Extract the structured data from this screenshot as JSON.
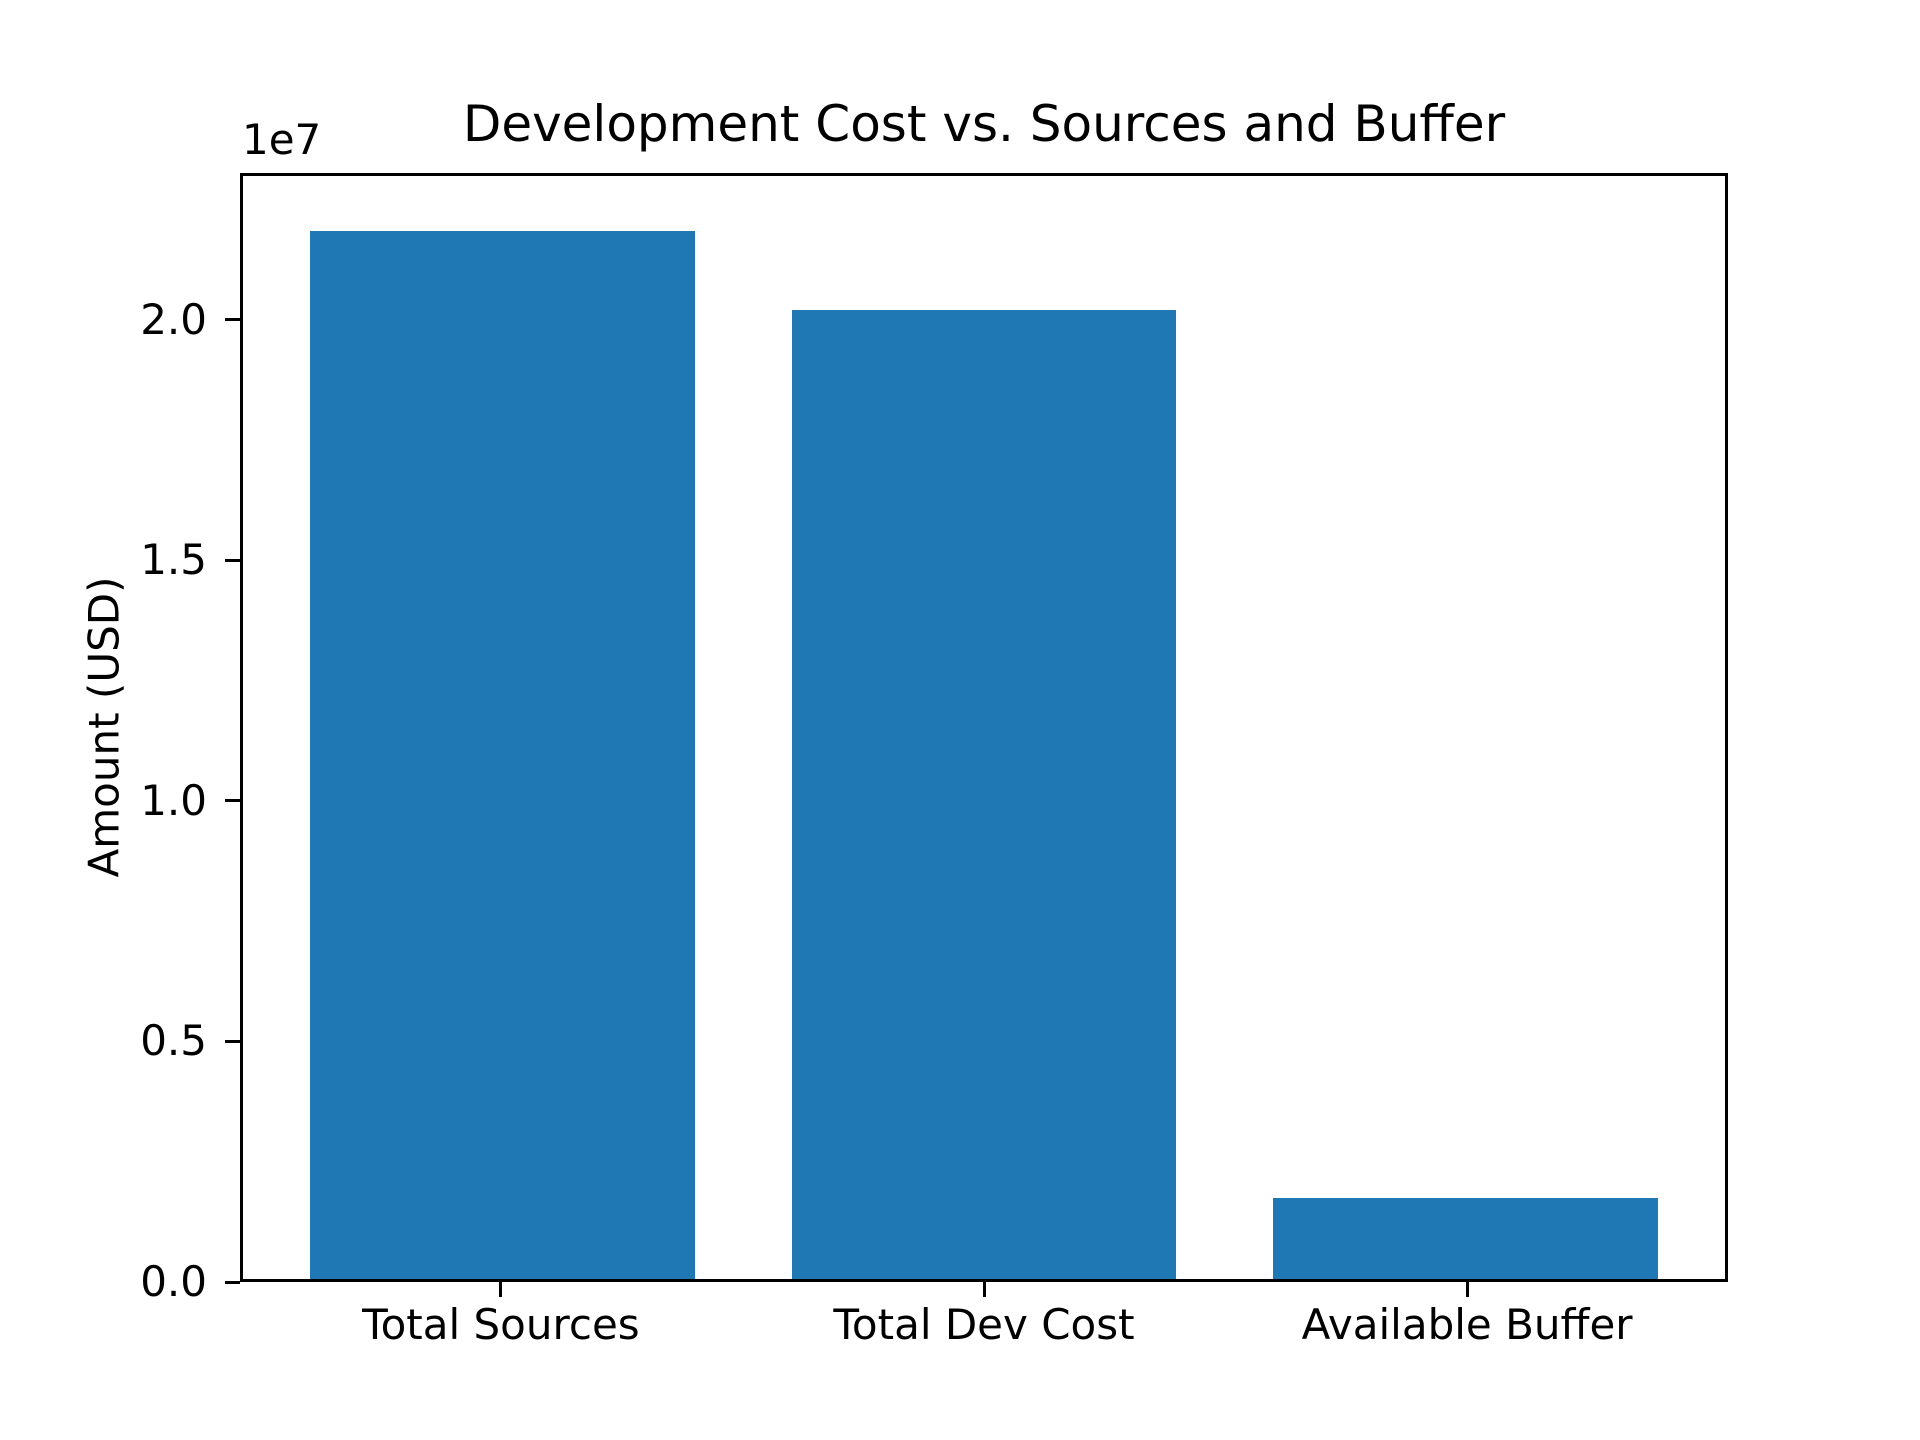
{
  "chart_data": {
    "type": "bar",
    "title": "Development Cost vs. Sources and Buffer",
    "xlabel": "",
    "ylabel": "Amount (USD)",
    "y_offset_label": "1e7",
    "categories": [
      "Total Sources",
      "Total Dev Cost",
      "Available Buffer"
    ],
    "values": [
      21900000,
      20250000,
      1700000
    ],
    "y_ticks": [
      0.0,
      0.5,
      1.0,
      1.5,
      2.0
    ],
    "y_tick_labels": [
      "0.0",
      "0.5",
      "1.0",
      "1.5",
      "2.0"
    ],
    "y_tick_scale": 10000000,
    "ylim": [
      0,
      23050000
    ],
    "bar_color": "#1f77b4",
    "axis_color": "#000000",
    "background_color": "#ffffff",
    "grid": false,
    "legend": null
  }
}
